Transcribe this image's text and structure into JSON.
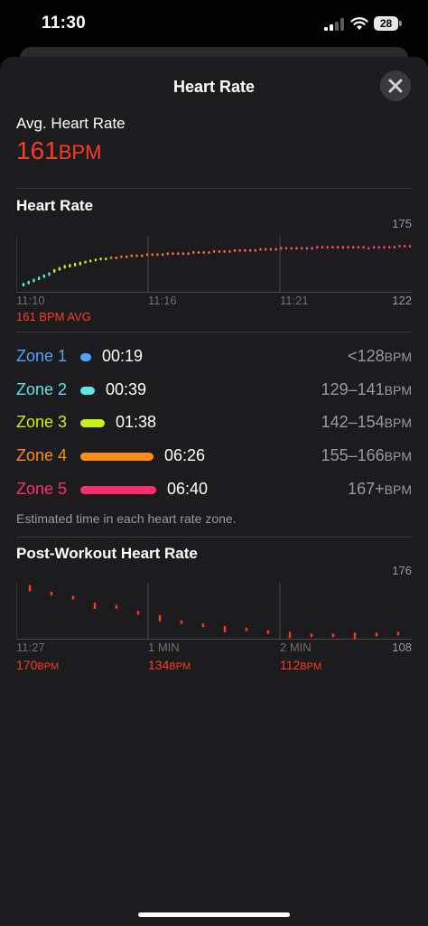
{
  "status_bar": {
    "time": "11:30",
    "battery": "28"
  },
  "header": {
    "title": "Heart Rate"
  },
  "summary": {
    "label": "Avg. Heart Rate",
    "value": "161",
    "unit": "BPM"
  },
  "heart_rate_chart": {
    "title": "Heart Rate",
    "y_max_label": "175",
    "y_min_label": "122",
    "x_ticks": [
      "11:10",
      "11:16",
      "11:21"
    ],
    "avg_label": "161 BPM AVG"
  },
  "zones": [
    {
      "name": "Zone 1",
      "time": "00:19",
      "range": "<128",
      "unit": "BPM",
      "color": "#4da3ff"
    },
    {
      "name": "Zone 2",
      "time": "00:39",
      "range": "129–141",
      "unit": "BPM",
      "color": "#5ee6e6"
    },
    {
      "name": "Zone 3",
      "time": "01:38",
      "range": "142–154",
      "unit": "BPM",
      "color": "#c6f016"
    },
    {
      "name": "Zone 4",
      "time": "06:26",
      "range": "155–166",
      "unit": "BPM",
      "color": "#ff8c1a"
    },
    {
      "name": "Zone 5",
      "time": "06:40",
      "range": "167+",
      "unit": "BPM",
      "color": "#ff2d6f"
    }
  ],
  "zone_note": "Estimated time in each heart rate zone.",
  "post_workout": {
    "title": "Post-Workout Heart Rate",
    "y_max_label": "176",
    "y_min_label": "108",
    "x_ticks": [
      "11:27",
      "1 MIN",
      "2 MIN"
    ],
    "readings": [
      {
        "value": "170",
        "unit": "BPM"
      },
      {
        "value": "134",
        "unit": "BPM"
      },
      {
        "value": "112",
        "unit": "BPM"
      }
    ]
  },
  "colors": {
    "accent_red": "#ff3b1f",
    "sheet_bg": "#1c1c1e"
  },
  "chart_data": [
    {
      "type": "scatter",
      "title": "Heart Rate",
      "ylim": [
        122,
        175
      ],
      "x_ticks": [
        "11:10",
        "11:16",
        "11:21"
      ],
      "y": [
        130,
        132,
        134,
        136,
        138,
        140,
        143,
        145,
        147,
        148,
        149,
        150,
        151,
        152,
        153,
        154,
        154,
        155,
        155,
        156,
        156,
        157,
        157,
        157,
        158,
        158,
        158,
        158,
        159,
        159,
        159,
        159,
        159,
        160,
        160,
        160,
        160,
        161,
        161,
        161,
        161,
        162,
        162,
        162,
        162,
        162,
        163,
        163,
        163,
        163,
        164,
        164,
        164,
        164,
        164,
        164,
        164,
        165,
        165,
        165,
        165,
        165,
        165,
        165,
        165,
        165,
        165,
        164,
        165,
        165,
        165,
        165,
        165,
        166,
        166,
        166
      ]
    },
    {
      "type": "scatter",
      "title": "Post-Workout Heart Rate",
      "ylim": [
        108,
        176
      ],
      "x_ticks": [
        "11:27",
        "1 MIN",
        "2 MIN"
      ],
      "y": [
        170,
        162,
        157,
        149,
        146,
        139,
        134,
        128,
        124,
        121,
        119,
        116,
        114,
        112,
        112,
        113,
        113,
        114
      ]
    }
  ]
}
